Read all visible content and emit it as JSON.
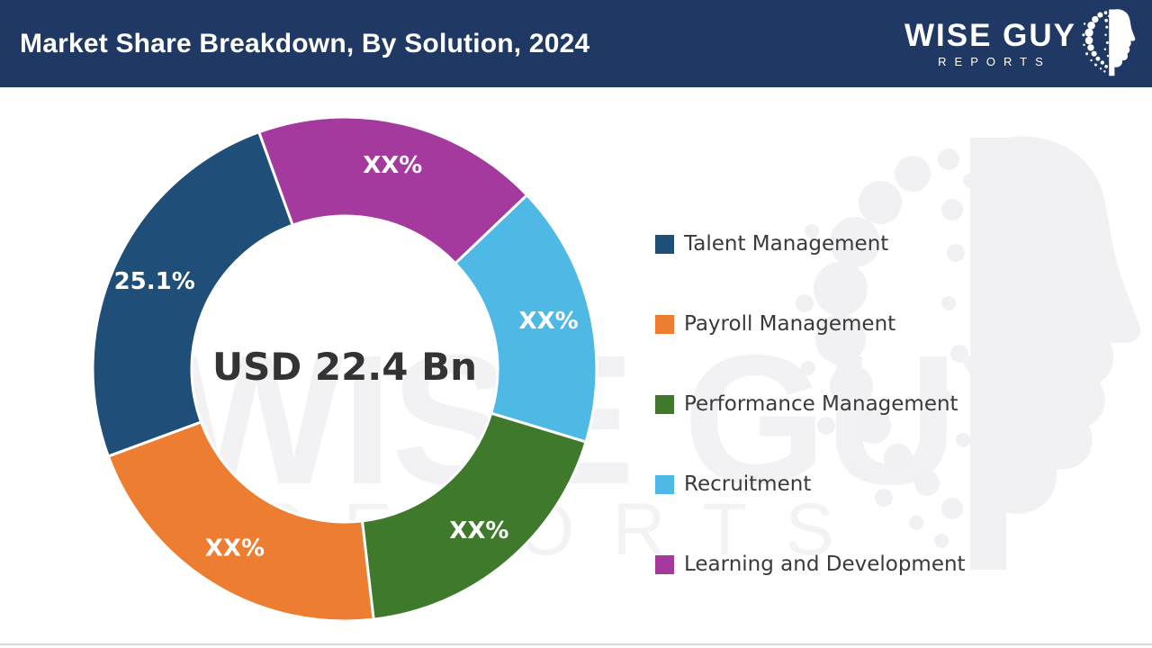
{
  "header": {
    "title": "Market Share Breakdown, By Solution, 2024",
    "background_color": "#203864",
    "logo": {
      "line1": "WISE GUY",
      "line2": "REPORTS"
    }
  },
  "watermark": {
    "line1": "WISE GUY",
    "line2": "REPORTS"
  },
  "chart_data": {
    "type": "pie",
    "subtype": "donut",
    "title": "Market Share Breakdown, By Solution, 2024",
    "center_label": "USD 22.4 Bn",
    "start_angle_deg": 340.1,
    "legend_position": "right",
    "segments": [
      {
        "name": "Learning and Development",
        "display_label": "XX%",
        "share_pct_estimated": 18.4,
        "color": "#A43A9D"
      },
      {
        "name": "Recruitment",
        "display_label": "XX%",
        "share_pct_estimated": 16.8,
        "color": "#4FB9E6"
      },
      {
        "name": "Performance Management",
        "display_label": "XX%",
        "share_pct_estimated": 18.5,
        "color": "#3F7A2C"
      },
      {
        "name": "Payroll Management",
        "display_label": "XX%",
        "share_pct_estimated": 21.2,
        "color": "#ED7D31"
      },
      {
        "name": "Talent Management",
        "display_label": "25.1%",
        "share_pct_estimated": 25.1,
        "color": "#1F4E79"
      }
    ],
    "legend": [
      {
        "label": "Talent Management",
        "color": "#1F4E79"
      },
      {
        "label": "Payroll Management",
        "color": "#ED7D31"
      },
      {
        "label": "Performance Management",
        "color": "#3F7A2C"
      },
      {
        "label": "Recruitment",
        "color": "#4FB9E6"
      },
      {
        "label": "Learning and Development",
        "color": "#A43A9D"
      }
    ]
  }
}
